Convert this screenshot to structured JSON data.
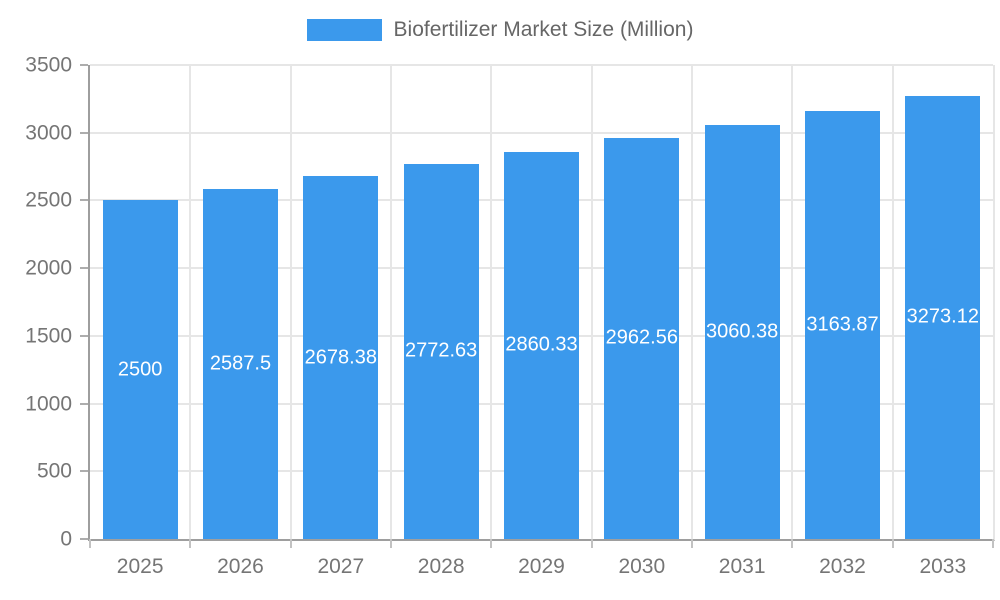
{
  "legend": {
    "label": "Biofertilizer Market Size (Million)"
  },
  "chart_data": {
    "type": "bar",
    "title": "Biofertilizer Market Size (Million)",
    "xlabel": "",
    "ylabel": "",
    "categories": [
      "2025",
      "2026",
      "2027",
      "2028",
      "2029",
      "2030",
      "2031",
      "2032",
      "2033"
    ],
    "series": [
      {
        "name": "Biofertilizer Market Size (Million)",
        "values": [
          2500,
          2587.5,
          2678.38,
          2772.63,
          2860.33,
          2962.56,
          3060.38,
          3163.87,
          3273.12
        ]
      }
    ],
    "value_labels": [
      "2500",
      "2587.5",
      "2678.38",
      "2772.63",
      "2860.33",
      "2962.56",
      "3060.38",
      "3163.87",
      "3273.12"
    ],
    "ylim": [
      0,
      3500
    ],
    "y_ticks": [
      0,
      500,
      1000,
      1500,
      2000,
      2500,
      3000,
      3500
    ],
    "grid": true,
    "legend_position": "top-center",
    "value_labels_inside_bars": true,
    "colors": {
      "bar": "#3B99EC",
      "value_label": "#FFFFFF",
      "axis_text": "#757575",
      "legend_text": "#666666",
      "gridline": "#E6E6E6",
      "axis_line": "#9E9E9E"
    }
  }
}
